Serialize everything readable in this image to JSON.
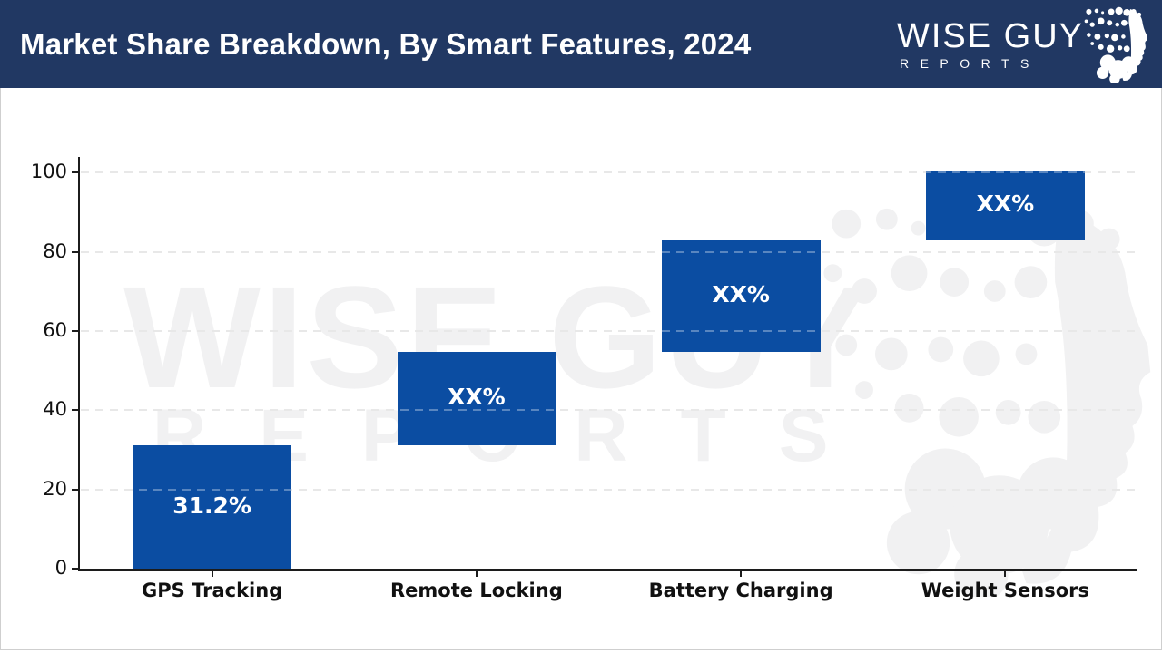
{
  "header": {
    "title": "Market Share Breakdown, By Smart Features, 2024",
    "logo": {
      "line1": "WISE GUY",
      "line2": "REPORTS"
    }
  },
  "watermark": {
    "line1": "WISE GUY",
    "line2": "REPORTS"
  },
  "colors": {
    "header_bg": "#213863",
    "bar": "#0B4DA2",
    "axis": "#1c1c1c",
    "gridline": "#dddddd",
    "bar_label": "#ffffff",
    "watermark": "#f1f1f2"
  },
  "chart_data": {
    "type": "bar",
    "subtype": "waterfall",
    "title": "Market Share Breakdown, By Smart Features, 2024",
    "categories": [
      "GPS Tracking",
      "Remote Locking",
      "Battery Charging",
      "Weight Sensors"
    ],
    "segments": [
      {
        "category": "GPS Tracking",
        "start": 0,
        "end": 31.2,
        "label": "31.2%"
      },
      {
        "category": "Remote Locking",
        "start": 31.2,
        "end": 54.8,
        "label": "XX%"
      },
      {
        "category": "Battery Charging",
        "start": 54.8,
        "end": 83.0,
        "label": "XX%"
      },
      {
        "category": "Weight Sensors",
        "start": 83.0,
        "end": 100.6,
        "label": "XX%"
      }
    ],
    "xlabel": "",
    "ylabel": "",
    "ylim": [
      0,
      104
    ],
    "yticks": [
      0,
      20,
      40,
      60,
      80,
      100
    ],
    "grid": "horizontal-dashed",
    "legend": "none"
  }
}
